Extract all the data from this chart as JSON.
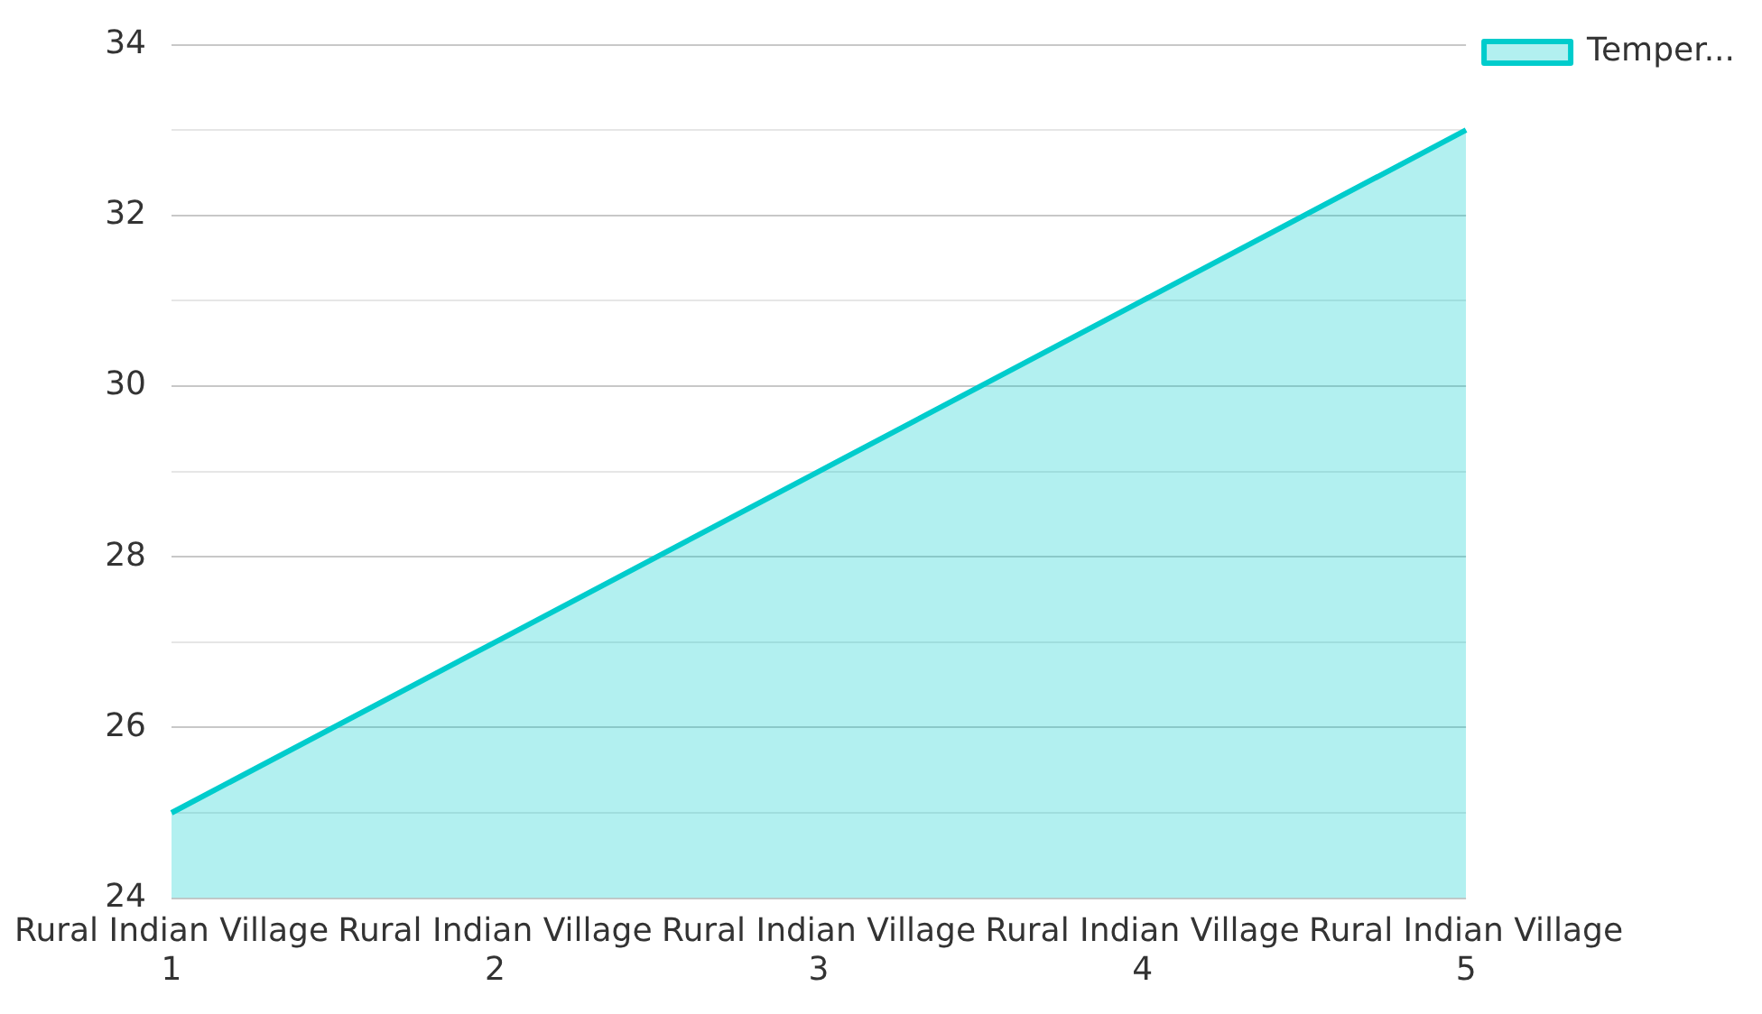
{
  "chart_data": {
    "type": "area",
    "categories": [
      "Rural Indian Village 1",
      "Rural Indian Village 2",
      "Rural Indian Village 3",
      "Rural Indian Village 4",
      "Rural Indian Village 5"
    ],
    "series": [
      {
        "name": "Temper...",
        "color": "#00cccc",
        "values": [
          25,
          27,
          29,
          31,
          33
        ]
      }
    ],
    "ylim": [
      24,
      34
    ],
    "yticks": [
      24,
      {
        "value": 25,
        "label": null
      },
      26,
      {
        "value": 27,
        "label": null
      },
      28,
      {
        "value": 29,
        "label": null
      },
      30,
      {
        "value": 31,
        "label": null
      },
      32,
      {
        "value": 33,
        "label": null
      },
      34
    ],
    "grid": "y",
    "legend": "top right",
    "marker": "none",
    "line_style": "solid"
  }
}
